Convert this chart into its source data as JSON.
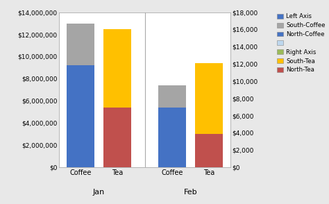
{
  "left_axis": {
    "ylim": [
      0,
      14000000
    ],
    "yticks": [
      0,
      2000000,
      4000000,
      6000000,
      8000000,
      10000000,
      12000000,
      14000000
    ]
  },
  "right_axis": {
    "ylim": [
      0,
      18000
    ],
    "yticks": [
      0,
      2000,
      4000,
      6000,
      8000,
      10000,
      12000,
      14000,
      16000,
      18000
    ]
  },
  "bars": {
    "Jan_Coffee": {
      "North-Coffee": 9200000,
      "South-Coffee": 3800000
    },
    "Jan_Tea": {
      "North-Tea": 5400000,
      "South-Tea": 7100000
    },
    "Feb_Coffee": {
      "North-Coffee": 5400000,
      "South-Coffee": 2000000
    },
    "Feb_Tea": {
      "North-Tea": 3000000,
      "South-Tea": 6400000
    }
  },
  "colors": {
    "North-Coffee": "#4472C4",
    "South-Coffee": "#A5A5A5",
    "North-Tea": "#C0504D",
    "South-Tea": "#FFC000",
    "light_blue": "#BDD7EE",
    "green": "#9BBB59"
  },
  "legend_items": [
    {
      "label": "Left Axis",
      "color": "#4472C4"
    },
    {
      "label": "South-Coffee",
      "color": "#A5A5A5"
    },
    {
      "label": "North-Coffee",
      "color": "#4472C4"
    },
    {
      "label": "",
      "color": "#BDD7EE"
    },
    {
      "label": "Right Axis",
      "color": "#9BBB59"
    },
    {
      "label": "South-Tea",
      "color": "#FFC000"
    },
    {
      "label": "North-Tea",
      "color": "#C0504D"
    }
  ],
  "bar_width": 0.45,
  "fig_bg": "#E8E8E8",
  "plot_bg": "#FFFFFF",
  "grid_color": "#FFFFFF",
  "spine_color": "#AAAAAA"
}
